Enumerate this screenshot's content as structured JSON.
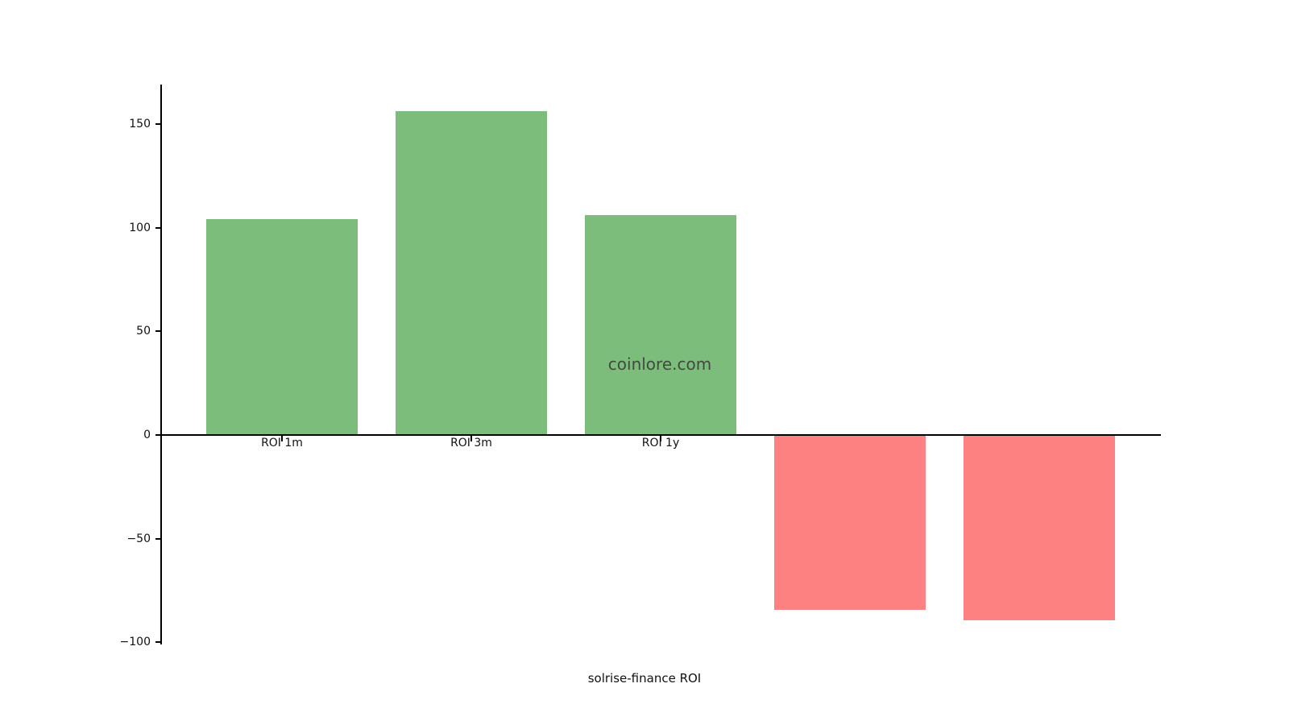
{
  "figure": {
    "background_color": "#ffffff",
    "axis_color": "#000000",
    "tick_label_color": "#111111"
  },
  "watermark": {
    "text": "coinlore.com",
    "color": "#333333"
  },
  "chart_data": {
    "type": "bar",
    "title": "solrise-finance ROI",
    "xlabel": "solrise-finance ROI",
    "ylabel": "",
    "categories": [
      "ROI 1m",
      "ROI 3m",
      "ROI 1y",
      "",
      ""
    ],
    "values": [
      104,
      156,
      106,
      -84,
      -89
    ],
    "bar_colors": [
      "#7cbd7c",
      "#7cbd7c",
      "#7cbd7c",
      "#fd8181",
      "#fd8181"
    ],
    "positive_color": "#7cbd7c",
    "negative_color": "#fd8181",
    "y_ticks": [
      150,
      100,
      50,
      0,
      -50,
      -100
    ],
    "y_tick_labels": [
      "150",
      "100",
      "50",
      "0",
      "−50",
      "−100"
    ],
    "ylim": [
      -101,
      169
    ],
    "grid": false,
    "legend_position": "none",
    "baseline": 0,
    "note": "x tick labels of the two negative bars are hidden behind the bars"
  }
}
